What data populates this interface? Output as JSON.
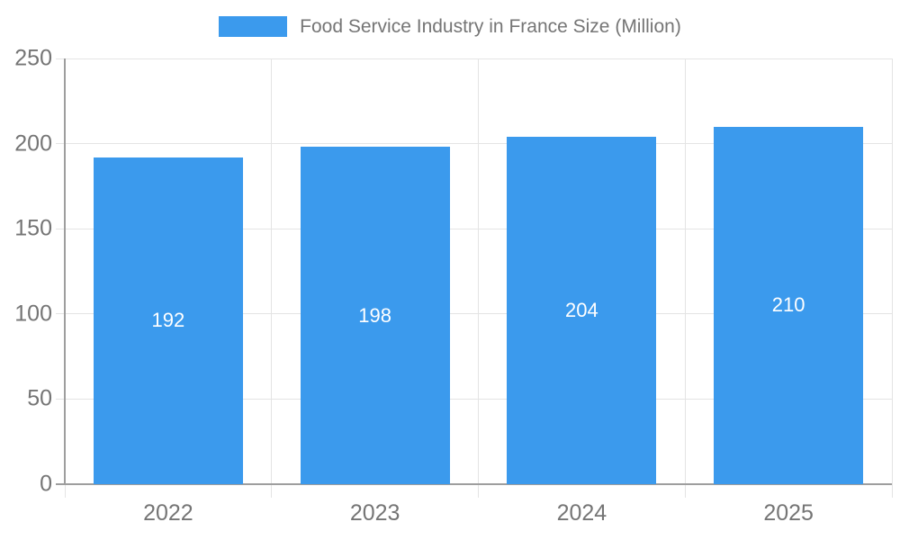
{
  "chart_data": {
    "type": "bar",
    "title": "Food Service Industry in France Size (Million)",
    "categories": [
      "2022",
      "2023",
      "2024",
      "2025"
    ],
    "values": [
      192,
      198,
      204,
      210
    ],
    "ylim": [
      0,
      250
    ],
    "yticks": [
      0,
      50,
      100,
      150,
      200,
      250
    ],
    "grid": true,
    "legend_position": "top-center",
    "colors": {
      "bar": "#3B9AED",
      "axis": "#9E9E9E",
      "grid": "#E4E4E4",
      "tick_text": "#757575",
      "title_text": "#757575",
      "bar_label_text": "#FFFFFF"
    }
  }
}
